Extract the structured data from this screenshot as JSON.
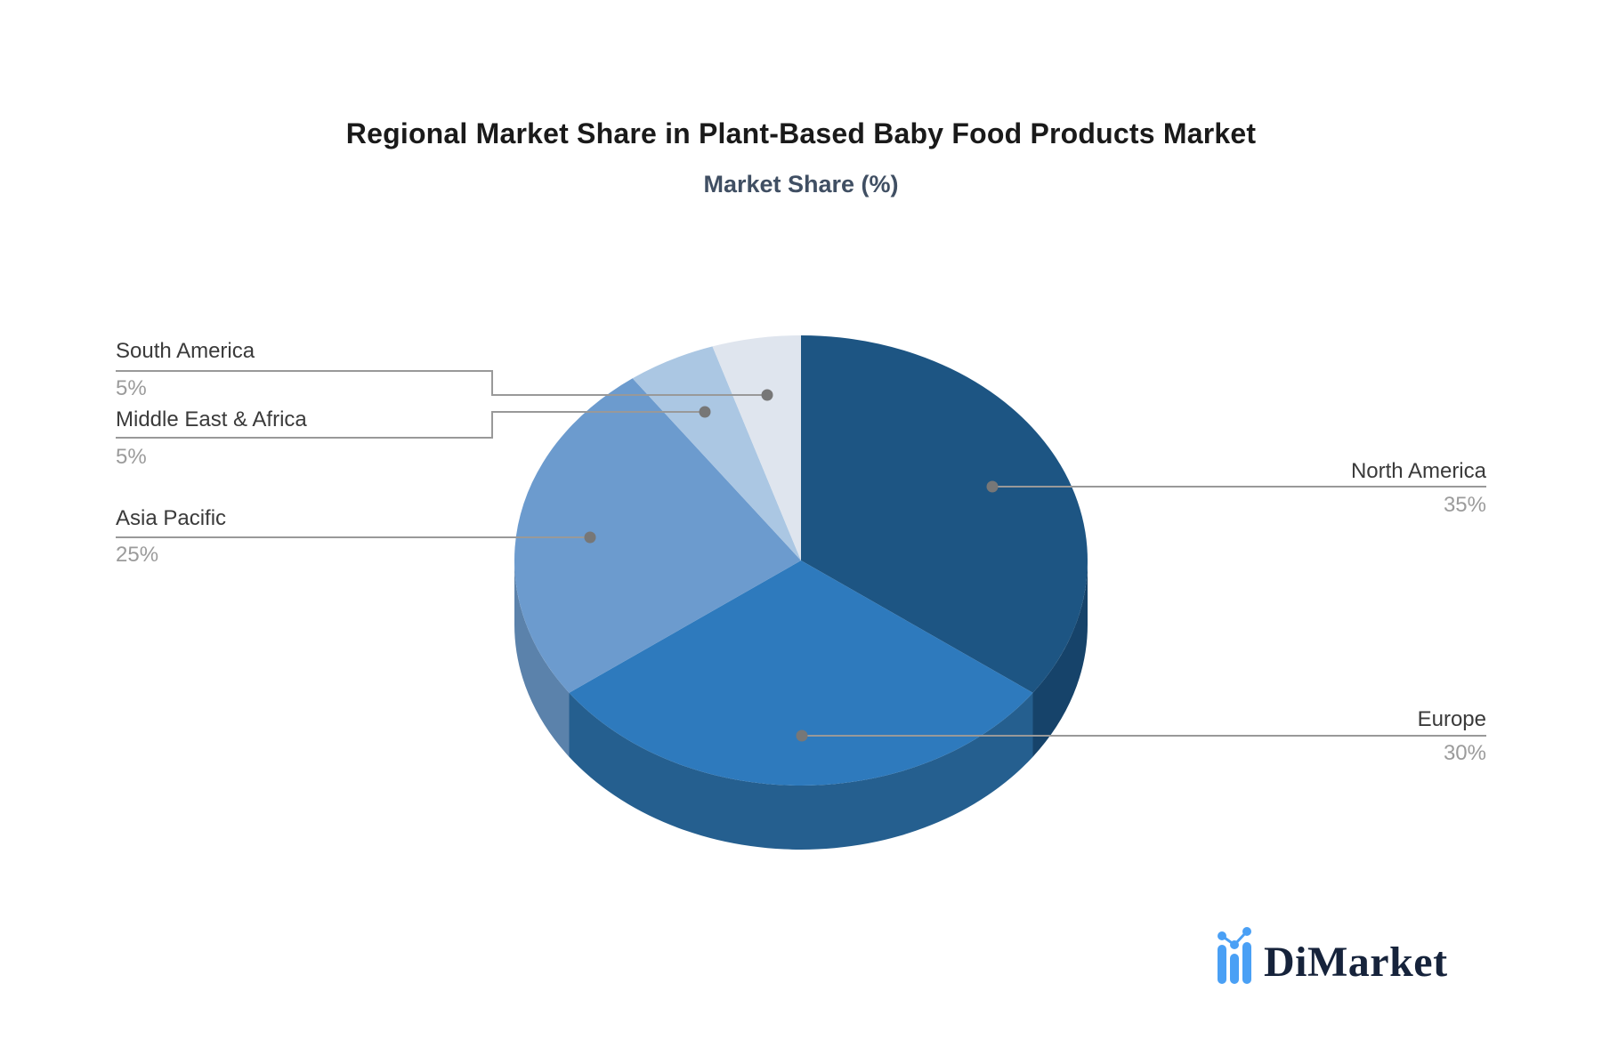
{
  "title": "Regional Market Share in Plant-Based Baby Food Products Market",
  "subtitle": "Market Share (%)",
  "logo": {
    "text": "DiMarket",
    "icon": "bar-line-chart-icon"
  },
  "colors": {
    "leader_line": "#999999",
    "leader_dot": "#777777",
    "logo_accent": "#4aa0f5",
    "logo_text": "#16233b",
    "title_text": "#1a1a1a",
    "subtitle_text": "#404f63"
  },
  "chart_data": {
    "type": "pie",
    "title": "Regional Market Share in Plant-Based Baby Food Products Market",
    "subtitle": "Market Share (%)",
    "unit": "%",
    "direction": "clockwise",
    "start_angle_deg": 0,
    "effect": "3d-depth",
    "legend_position": "callout-labels",
    "segments": [
      {
        "label": "North America",
        "value": 35,
        "pct_label": "35%",
        "color": "#1d5583",
        "side_color": "#16436a"
      },
      {
        "label": "Europe",
        "value": 30,
        "pct_label": "30%",
        "color": "#2e7abd",
        "side_color": "#255f8f"
      },
      {
        "label": "Asia Pacific",
        "value": 25,
        "pct_label": "25%",
        "color": "#6c9bce",
        "side_color": "#5b82ab"
      },
      {
        "label": "Middle East & Africa",
        "value": 5,
        "pct_label": "5%",
        "color": "#abc7e3",
        "side_color": "#8fb3d6"
      },
      {
        "label": "South America",
        "value": 5,
        "pct_label": "5%",
        "color": "#dfe5ee",
        "side_color": "#c4cedd"
      }
    ]
  }
}
